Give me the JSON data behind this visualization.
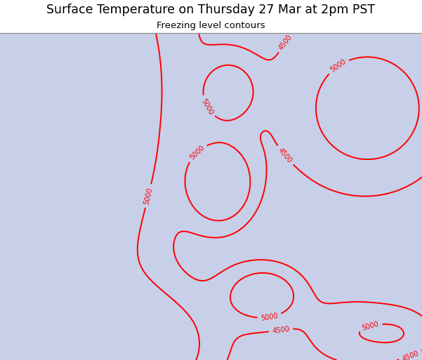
{
  "title": "Surface Temperature on Thursday 27 Mar at 2pm PST",
  "subtitle": "Freezing level contours",
  "title_fontsize": 12.5,
  "subtitle_fontsize": 9.5,
  "fig_width": 6.01,
  "fig_height": 5.13,
  "dpi": 100,
  "background_color": "#ffffff",
  "ocean_color": "#c8cfe8",
  "map_extent": [
    108.0,
    132.0,
    3.0,
    28.0
  ],
  "contour_color": "#ff0000",
  "contour_linewidth": 1.4,
  "grid_color": "#a8b4cc",
  "grid_linewidth": 0.5,
  "grid_alpha": 0.8,
  "header_line_color": "#888888",
  "header_line_lw": 0.8,
  "contour_label_fontsize": 7,
  "contour_label_bg": "white"
}
